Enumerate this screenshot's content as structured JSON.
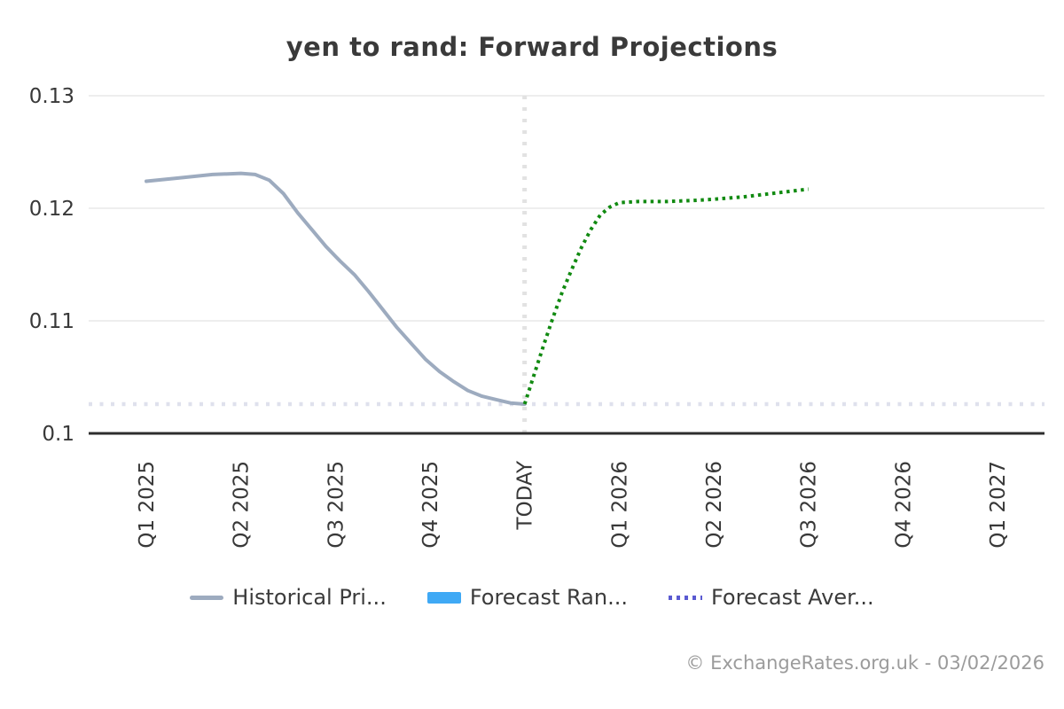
{
  "title": "yen to rand: Forward Projections",
  "footer": {
    "text": "© ExchangeRates.org.uk - 03/02/2026"
  },
  "legend": {
    "items": [
      {
        "label": "Historical Pri...",
        "swatch": "line",
        "color": "#9dabbf"
      },
      {
        "label": "Forecast Ran...",
        "swatch": "rect",
        "color": "#3fa9f5"
      },
      {
        "label": "Forecast Aver...",
        "swatch": "dotted",
        "color": "#5a5ad1"
      }
    ]
  },
  "chart_data": {
    "type": "line",
    "title": "yen to rand: Forward Projections",
    "x_tick_labels": [
      "Q1 2025",
      "Q2 2025",
      "Q3 2025",
      "Q4 2025",
      "TODAY",
      "Q1 2026",
      "Q2 2026",
      "Q3 2026",
      "Q4 2026",
      "Q1 2027"
    ],
    "y_tick_labels": [
      "0.1",
      "0.11",
      "0.12",
      "0.13"
    ],
    "y_ticks": [
      0.1,
      0.11,
      0.12,
      0.13
    ],
    "ylim": [
      0.1,
      0.13
    ],
    "x_unit": "quarter index (0 = Q1 2025, 9 = Q1 2027)",
    "today_marker_x": 4,
    "range_marker_value": 0.1026,
    "grid": true,
    "legend_position": "bottom",
    "series": [
      {
        "name": "Historical Price",
        "style": "solid",
        "color": "#9dabbf",
        "x": [
          0,
          0.35,
          0.7,
          1.0,
          1.15,
          1.3,
          1.45,
          1.6,
          1.75,
          1.9,
          2.05,
          2.2,
          2.35,
          2.5,
          2.65,
          2.8,
          2.95,
          3.1,
          3.25,
          3.4,
          3.55,
          3.7,
          3.85,
          4.0
        ],
        "y": [
          0.1224,
          0.1227,
          0.123,
          0.1231,
          0.123,
          0.1225,
          0.1213,
          0.1196,
          0.1181,
          0.1166,
          0.1153,
          0.1141,
          0.1126,
          0.111,
          0.1094,
          0.108,
          0.1066,
          0.1055,
          0.1046,
          0.1038,
          0.1033,
          0.103,
          0.1027,
          0.1026
        ]
      },
      {
        "name": "Forecast Average",
        "style": "dotted",
        "color": "#118a11",
        "x": [
          4.0,
          4.1,
          4.2,
          4.3,
          4.4,
          4.5,
          4.6,
          4.7,
          4.8,
          4.9,
          5.0,
          5.2,
          5.5,
          5.8,
          6.0,
          6.3,
          6.6,
          6.8,
          7.0
        ],
        "y": [
          0.1026,
          0.1052,
          0.1078,
          0.1103,
          0.1126,
          0.1146,
          0.1165,
          0.1181,
          0.1194,
          0.1201,
          0.1205,
          0.1206,
          0.1206,
          0.1207,
          0.1208,
          0.121,
          0.1213,
          0.1215,
          0.1217
        ]
      }
    ],
    "colors": {
      "grid": "#e8e8e8",
      "axis": "#2d2d2d",
      "tick_label": "#383838",
      "today_line": "#e2e2e2",
      "range_line": "#dfe1ed"
    }
  }
}
